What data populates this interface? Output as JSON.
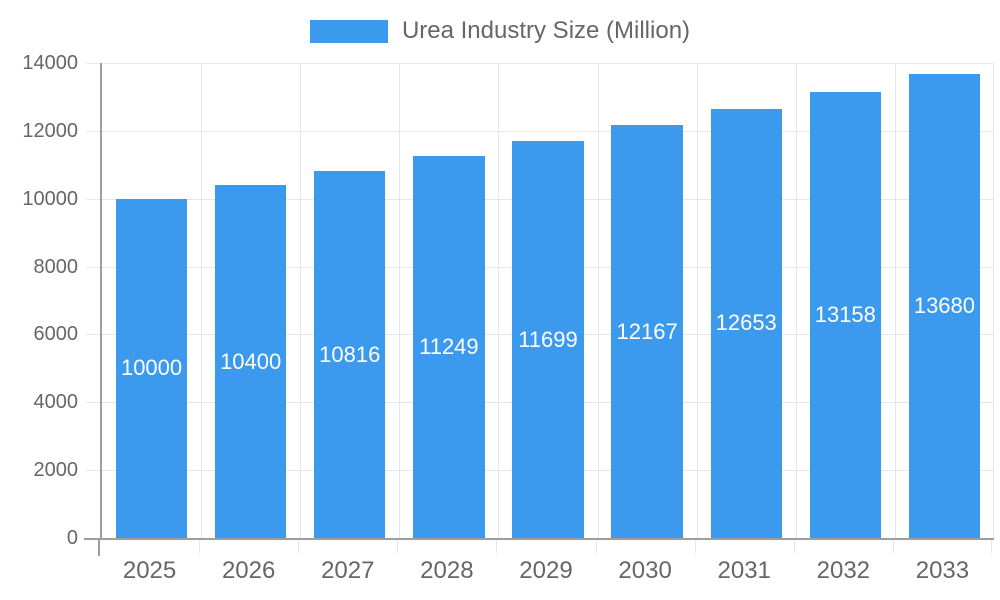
{
  "chart_data": {
    "type": "bar",
    "title": "Urea Industry Size (Million)",
    "legend_position": "top",
    "grid": true,
    "categories": [
      "2025",
      "2026",
      "2027",
      "2028",
      "2029",
      "2030",
      "2031",
      "2032",
      "2033"
    ],
    "series": [
      {
        "name": "Urea Industry Size (Million)",
        "values": [
          10000,
          10400,
          10816,
          11249,
          11699,
          12167,
          12653,
          13158,
          13680
        ]
      }
    ],
    "bar_value_labels": [
      "10000",
      "10400",
      "10816",
      "11249",
      "11699",
      "12167",
      "12653",
      "13158",
      "13680"
    ],
    "xlabel": "",
    "ylabel": "",
    "ylim": [
      0,
      14000
    ],
    "yticks": [
      0,
      2000,
      4000,
      6000,
      8000,
      10000,
      12000,
      14000
    ],
    "colors": {
      "bar": "#3B99EE",
      "bar_label_text": "#FFFFFF",
      "axis_text": "#666666",
      "gridline": "#E6E6E6",
      "axis_line": "#9E9E9E",
      "background": "#FFFFFF"
    }
  }
}
